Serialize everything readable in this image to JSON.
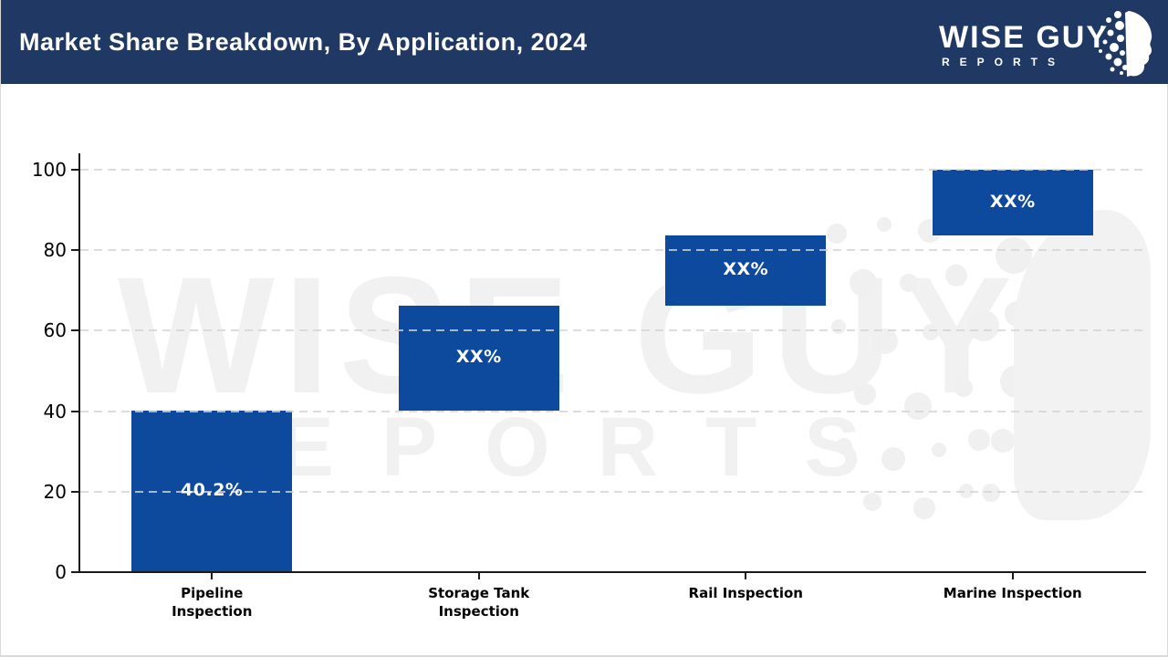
{
  "header": {
    "title": "Market Share Breakdown, By Application, 2024",
    "bg_color": "#1f3864",
    "logo": {
      "wordmark": "WISE GUY",
      "subtext": "REPORTS"
    }
  },
  "watermark": {
    "line1": "WISE GUY",
    "line2": "REPORTS"
  },
  "chart_data": {
    "type": "bar",
    "subtype": "stacked_waterfall",
    "title": "Market Share Breakdown, By Application, 2024",
    "categories": [
      "Pipeline Inspection",
      "Storage Tank Inspection",
      "Rail Inspection",
      "Marine Inspection"
    ],
    "category_label_lines": [
      [
        "Pipeline",
        "Inspection"
      ],
      [
        "Storage Tank",
        "Inspection"
      ],
      [
        "Rail Inspection"
      ],
      [
        "Marine Inspection"
      ]
    ],
    "bars": [
      {
        "category": "Pipeline Inspection",
        "start": 0,
        "end": 40.2,
        "value": 40.2,
        "label": "40.2%"
      },
      {
        "category": "Storage Tank Inspection",
        "start": 40.2,
        "end": 66.2,
        "value": 26.0,
        "label": "XX%"
      },
      {
        "category": "Rail Inspection",
        "start": 66.2,
        "end": 83.7,
        "value": 17.5,
        "label": "XX%"
      },
      {
        "category": "Marine Inspection",
        "start": 83.7,
        "end": 100,
        "value": 16.3,
        "label": "XX%"
      }
    ],
    "xlabel": "",
    "ylabel": "",
    "ylim": [
      0,
      100
    ],
    "yticks": [
      0,
      20,
      40,
      60,
      80,
      100
    ],
    "grid": "horizontal-dashed",
    "legend": "none",
    "bar_color": "#0d499c",
    "bar_label_color": "#ffffff",
    "axis_color": "#1a1a1a",
    "gridline_color": "#d4d4d4"
  }
}
